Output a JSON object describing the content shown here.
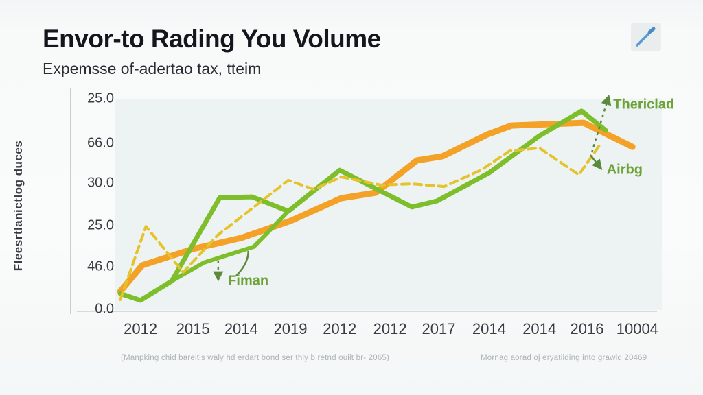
{
  "header": {
    "title": "Envor-to Rading You Volume",
    "subtitle": "Expemsse of-adertao tax, tteim"
  },
  "icon": {
    "name": "pencil-icon",
    "color": "#5b9bd5",
    "background": "#e9edee"
  },
  "footnotes": {
    "left": "(Manpking chid bareitls waly hd erdart bond ser thly b retnd ouiit br- 2065)",
    "right": "Mornag aorad oj eryatiiding into grawld 20469"
  },
  "colors": {
    "orange": "#f4a127",
    "green": "#7dbe2a",
    "yellow": "#e5c32c",
    "annotation_text": "#6ca235",
    "pointer": "#5c8a3c",
    "plot_background": "#edf2f3",
    "axis_line": "#c9cdce"
  },
  "chart_data": {
    "type": "line",
    "title": "Envor-to Rading You Volume",
    "subtitle": "Expemsse of-adertao tax, tteim",
    "xlabel": "",
    "ylabel": "Fleesrtlanictlog duces",
    "grid": false,
    "legend_position": "none (inline annotations)",
    "value_scale": "percent of plot height: 0 = bottom tick 0.0, 100 = top tick 25.0",
    "x_scale": "percent of plot width, left to right",
    "y_ticks": [
      {
        "label": "25.0",
        "val": 100
      },
      {
        "label": "66.0",
        "val": 78.8
      },
      {
        "label": "30.0",
        "val": 59.9
      },
      {
        "label": "25.0",
        "val": 39.7
      },
      {
        "label": "46.0",
        "val": 20.2
      },
      {
        "label": "0.0",
        "val": 0
      }
    ],
    "x_ticks": [
      {
        "label": "2012",
        "pct": 4.6
      },
      {
        "label": "2015",
        "pct": 14.2
      },
      {
        "label": "2014",
        "pct": 23.0
      },
      {
        "label": "2019",
        "pct": 32.0
      },
      {
        "label": "2012",
        "pct": 41.0
      },
      {
        "label": "2012",
        "pct": 50.2
      },
      {
        "label": "2017",
        "pct": 59.1
      },
      {
        "label": "2014",
        "pct": 68.3
      },
      {
        "label": "2014",
        "pct": 77.5
      },
      {
        "label": "2016",
        "pct": 86.2
      },
      {
        "label": "10004",
        "pct": 95.4
      }
    ],
    "series": [
      {
        "name": "orange-main",
        "color": "#f4a127",
        "width": 9,
        "dash": null,
        "points": [
          [
            0.9,
            8.8
          ],
          [
            4.9,
            21.2
          ],
          [
            14.2,
            29.0
          ],
          [
            23.0,
            34.2
          ],
          [
            32.0,
            42.3
          ],
          [
            41.3,
            53.1
          ],
          [
            47.6,
            55.7
          ],
          [
            55.1,
            71.0
          ],
          [
            59.8,
            73.0
          ],
          [
            68.0,
            83.4
          ],
          [
            72.4,
            87.6
          ],
          [
            85.6,
            88.9
          ],
          [
            94.5,
            77.5
          ]
        ]
      },
      {
        "name": "green-main",
        "color": "#7dbe2a",
        "width": 7,
        "dash": null,
        "points": [
          [
            0.9,
            7.8
          ],
          [
            4.6,
            4.6
          ],
          [
            10.3,
            13.7
          ],
          [
            19.1,
            53.4
          ],
          [
            25.0,
            53.7
          ],
          [
            29.1,
            49.5
          ],
          [
            31.6,
            46.9
          ],
          [
            41.0,
            66.4
          ],
          [
            54.2,
            48.9
          ],
          [
            58.8,
            51.8
          ],
          [
            68.3,
            65.1
          ],
          [
            77.5,
            82.7
          ],
          [
            85.2,
            94.5
          ],
          [
            89.6,
            85.3
          ]
        ]
      },
      {
        "name": "green-lower-branch",
        "color": "#7dbe2a",
        "width": 6,
        "dash": null,
        "points": [
          [
            10.3,
            13.7
          ],
          [
            16.2,
            22.5
          ],
          [
            25.3,
            30.0
          ],
          [
            31.6,
            46.9
          ]
        ]
      },
      {
        "name": "yellow-dashed",
        "color": "#e5c32c",
        "width": 4,
        "dash": "11 7",
        "points": [
          [
            0.9,
            4.9
          ],
          [
            5.6,
            39.7
          ],
          [
            12.4,
            17.9
          ],
          [
            18.7,
            35.5
          ],
          [
            31.6,
            61.6
          ],
          [
            36.3,
            57.3
          ],
          [
            41.3,
            63.2
          ],
          [
            48.6,
            59.3
          ],
          [
            54.2,
            59.9
          ],
          [
            60.1,
            58.6
          ],
          [
            66.8,
            66.4
          ],
          [
            72.1,
            75.6
          ],
          [
            77.5,
            76.9
          ],
          [
            84.7,
            64.2
          ],
          [
            88.5,
            78.2
          ]
        ]
      }
    ],
    "annotations": [
      {
        "label": "Fiman",
        "label_x_pct": 20.6,
        "label_val": 13.7,
        "pointers": [
          {
            "points": [
              [
                18.8,
                23.5
              ],
              [
                18.8,
                14.3
              ]
            ],
            "dash": true,
            "arrow": "end",
            "curve": false
          },
          {
            "points": [
              [
                22.1,
                16.3
              ],
              [
                24.3,
                28.0
              ]
            ],
            "dash": false,
            "arrow": null,
            "curve": true
          }
        ]
      },
      {
        "label": "Thericlad",
        "label_x_pct": 91.0,
        "label_val": 97.4,
        "pointers": [
          {
            "points": [
              [
                89.8,
                98.4
              ],
              [
                87.1,
                74.9
              ]
            ],
            "dash": true,
            "arrow": "start",
            "curve": false
          }
        ]
      },
      {
        "label": "Airbg",
        "label_x_pct": 89.8,
        "label_val": 66.4,
        "pointers": [
          {
            "points": [
              [
                86.8,
                73.6
              ],
              [
                88.8,
                67.1
              ]
            ],
            "dash": false,
            "arrow": "end",
            "curve": false
          }
        ]
      }
    ]
  }
}
